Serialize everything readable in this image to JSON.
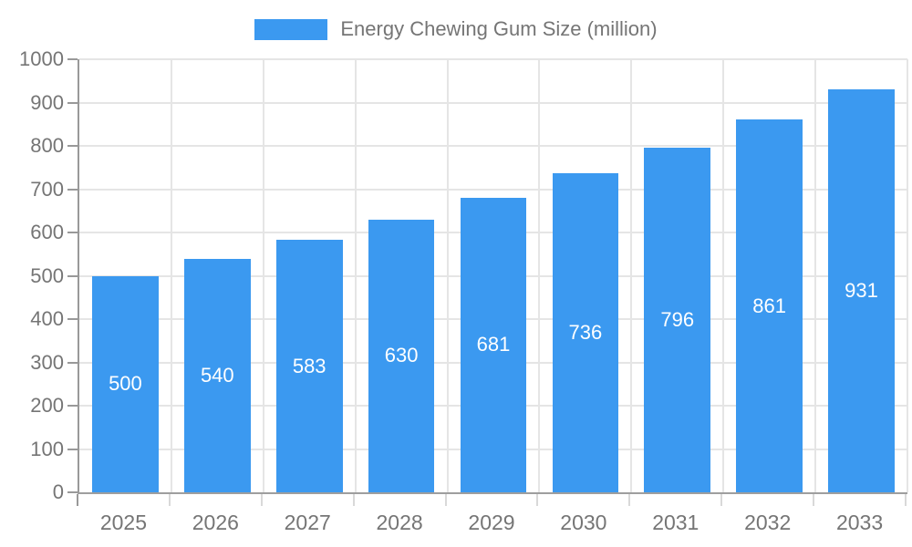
{
  "chart_data": {
    "type": "bar",
    "title": "Energy Chewing Gum Size (million)",
    "legend": {
      "label": "Energy Chewing Gum Size (million)",
      "position": "top-center"
    },
    "categories": [
      "2025",
      "2026",
      "2027",
      "2028",
      "2029",
      "2030",
      "2031",
      "2032",
      "2033"
    ],
    "series": [
      {
        "name": "Energy Chewing Gum Size (million)",
        "values": [
          500,
          540,
          583,
          630,
          681,
          736,
          796,
          861,
          931
        ]
      }
    ],
    "value_labels_shown": true,
    "xlabel": "",
    "ylabel": "",
    "ylim": [
      0,
      1000
    ],
    "yticks": [
      0,
      100,
      200,
      300,
      400,
      500,
      600,
      700,
      800,
      900,
      1000
    ],
    "grid": true,
    "colors": {
      "bar": "#3B99F0",
      "value_label": "#ffffff",
      "axis_text": "#757575",
      "axis_line": "#999999",
      "gridline": "#e5e5e5",
      "x_tick": "#d9d9d9",
      "background": "#ffffff"
    }
  }
}
